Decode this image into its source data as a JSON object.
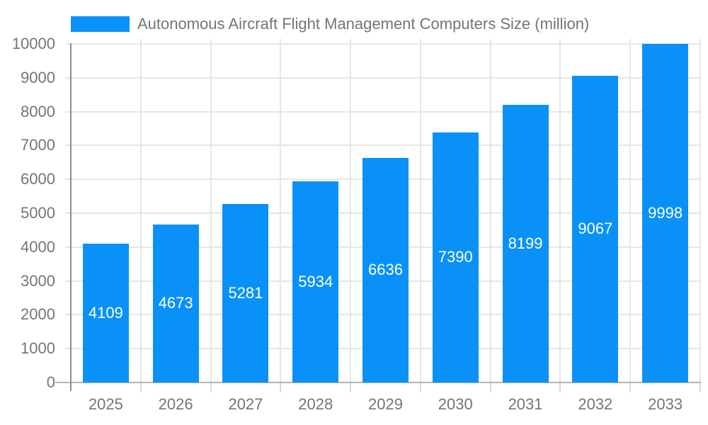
{
  "legend": {
    "label": "Autonomous Aircraft Flight Management Computers Size (million)"
  },
  "chart_data": {
    "type": "bar",
    "title": "Autonomous Aircraft Flight Management Computers Size (million)",
    "categories": [
      "2025",
      "2026",
      "2027",
      "2028",
      "2029",
      "2030",
      "2031",
      "2032",
      "2033"
    ],
    "values": [
      4109,
      4673,
      5281,
      5934,
      6636,
      7390,
      8199,
      9067,
      9998
    ],
    "series": [
      {
        "name": "Autonomous Aircraft Flight Management Computers Size (million)",
        "values": [
          4109,
          4673,
          5281,
          5934,
          6636,
          7390,
          8199,
          9067,
          9998
        ]
      }
    ],
    "xlabel": "",
    "ylabel": "",
    "ylim": [
      0,
      10000
    ],
    "ytick_interval": 1000,
    "yticks": [
      0,
      1000,
      2000,
      3000,
      4000,
      5000,
      6000,
      7000,
      8000,
      9000,
      10000
    ],
    "grid": true,
    "legend_position": "top-left",
    "value_labels": "inside-center",
    "colors": {
      "bar": "#0991f8",
      "grid": "#e6e6e6",
      "axis_x": "#b3b3b3",
      "axis_y": "#8c8c8c",
      "tick": "#d9d9d9",
      "text": "#757575",
      "value_label": "#ffffff"
    }
  }
}
